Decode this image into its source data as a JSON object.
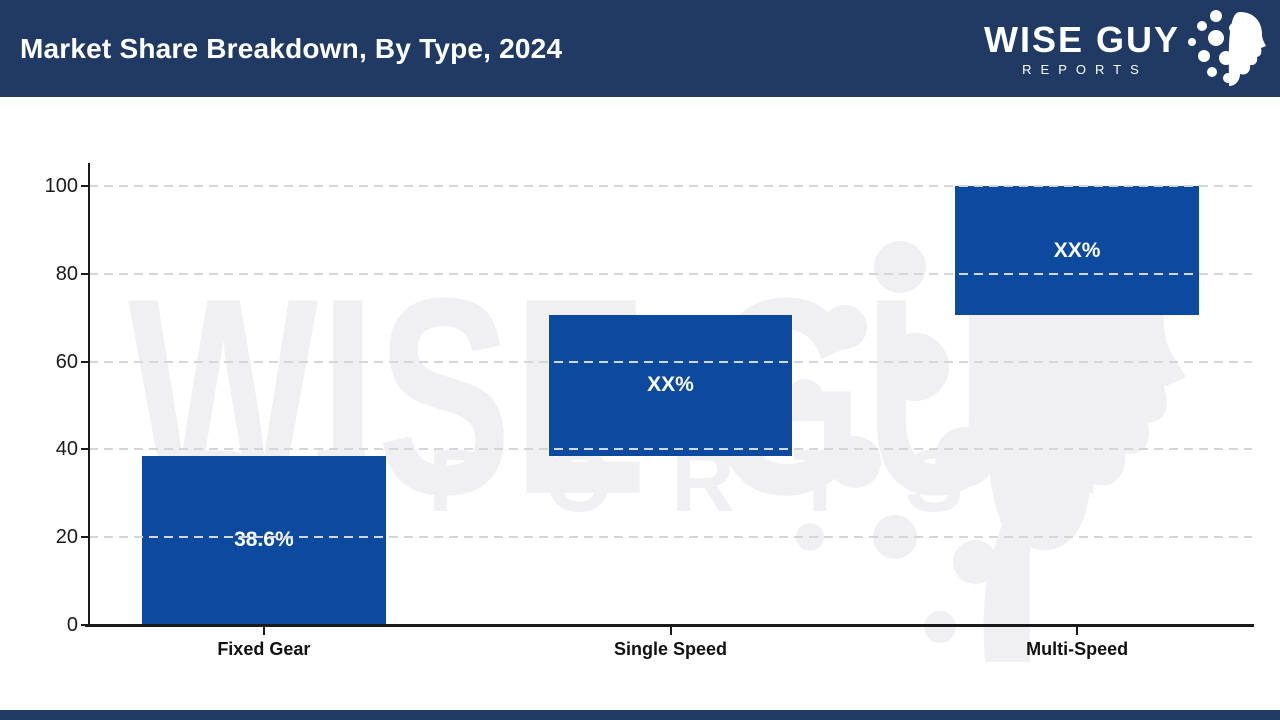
{
  "header": {
    "title": "Market Share Breakdown, By Type, 2024",
    "brand": {
      "line1": "WISE GUY",
      "line2": "REPORTS"
    }
  },
  "watermark": {
    "line1": "WISE GUY",
    "line2": "REPORTS"
  },
  "chart_data": {
    "type": "bar",
    "variant": "waterfall-stacked-progression",
    "title": "Market Share Breakdown, By Type, 2024",
    "categories": [
      "Fixed Gear",
      "Single Speed",
      "Multi-Speed"
    ],
    "segments": [
      {
        "category": "Fixed Gear",
        "start": 0,
        "end": 38.6,
        "label": "38.6%"
      },
      {
        "category": "Single Speed",
        "start": 38.6,
        "end": 70.6,
        "label": "XX%"
      },
      {
        "category": "Multi-Speed",
        "start": 70.6,
        "end": 100,
        "label": "XX%"
      }
    ],
    "xlabel": "",
    "ylabel": "",
    "ylim": [
      0,
      100
    ],
    "yticks": [
      0,
      20,
      40,
      60,
      80,
      100
    ],
    "grid": "horizontal dashed",
    "legend": "none",
    "bar_color": "#0c4a9f",
    "bar_label_color": "#ffffff"
  },
  "colors": {
    "header_bg": "#203a64",
    "header_text": "#ffffff",
    "footer_bg": "#203a64",
    "axis": "#1a1a1a",
    "grid": "#d6d6d6",
    "watermark": "#f0f0f3"
  }
}
